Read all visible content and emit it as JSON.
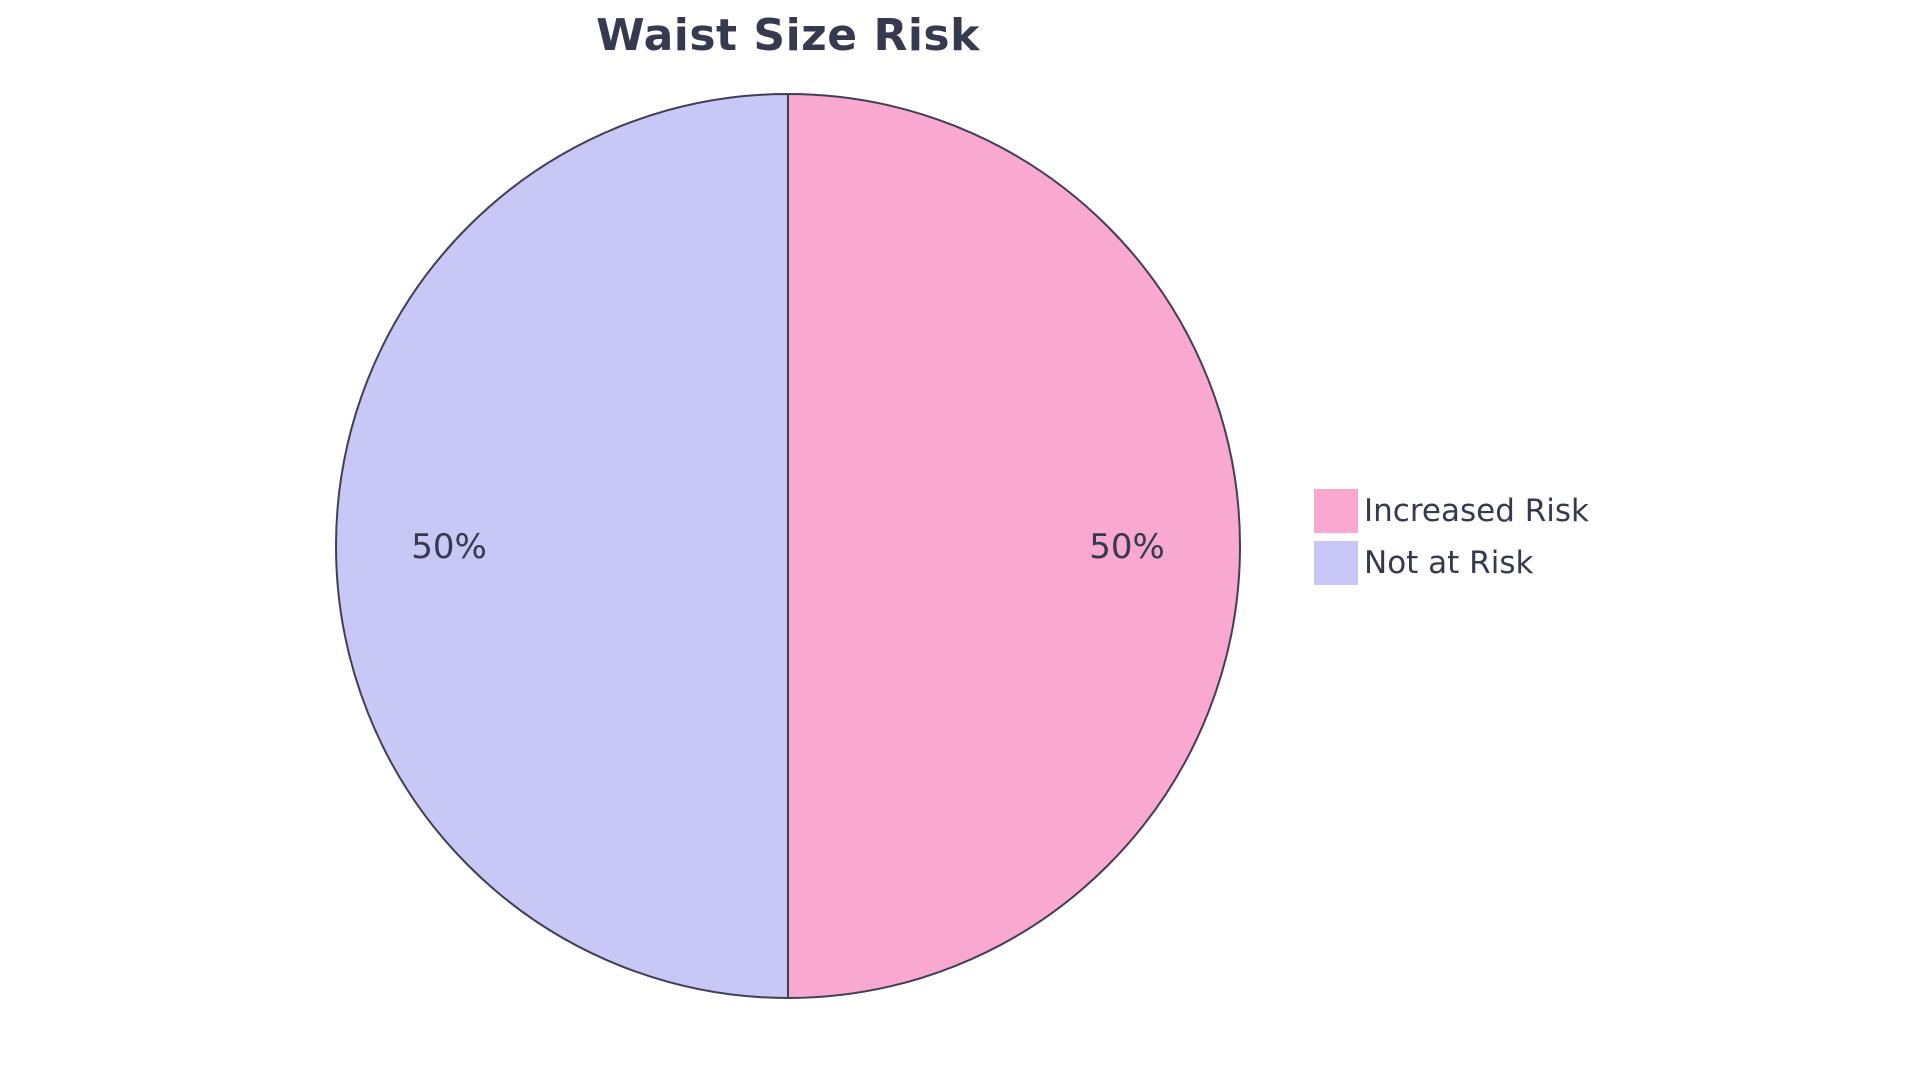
{
  "chart_data": {
    "type": "pie",
    "title": "Waist Size Risk",
    "series": [
      {
        "label": "Increased Risk",
        "value": 50,
        "display_pct": "50%",
        "color": "#F9A8D0"
      },
      {
        "label": "Not at Risk",
        "value": 50,
        "display_pct": "50%",
        "color": "#C8C7F5"
      }
    ],
    "start_angle_deg": 0,
    "direction": "clockwise",
    "legend_position": "right",
    "slice_outline_color": "#3E4057",
    "label_color": "#363A4E",
    "title_color": "#363A4E",
    "background_color": "#FFFFFF"
  }
}
